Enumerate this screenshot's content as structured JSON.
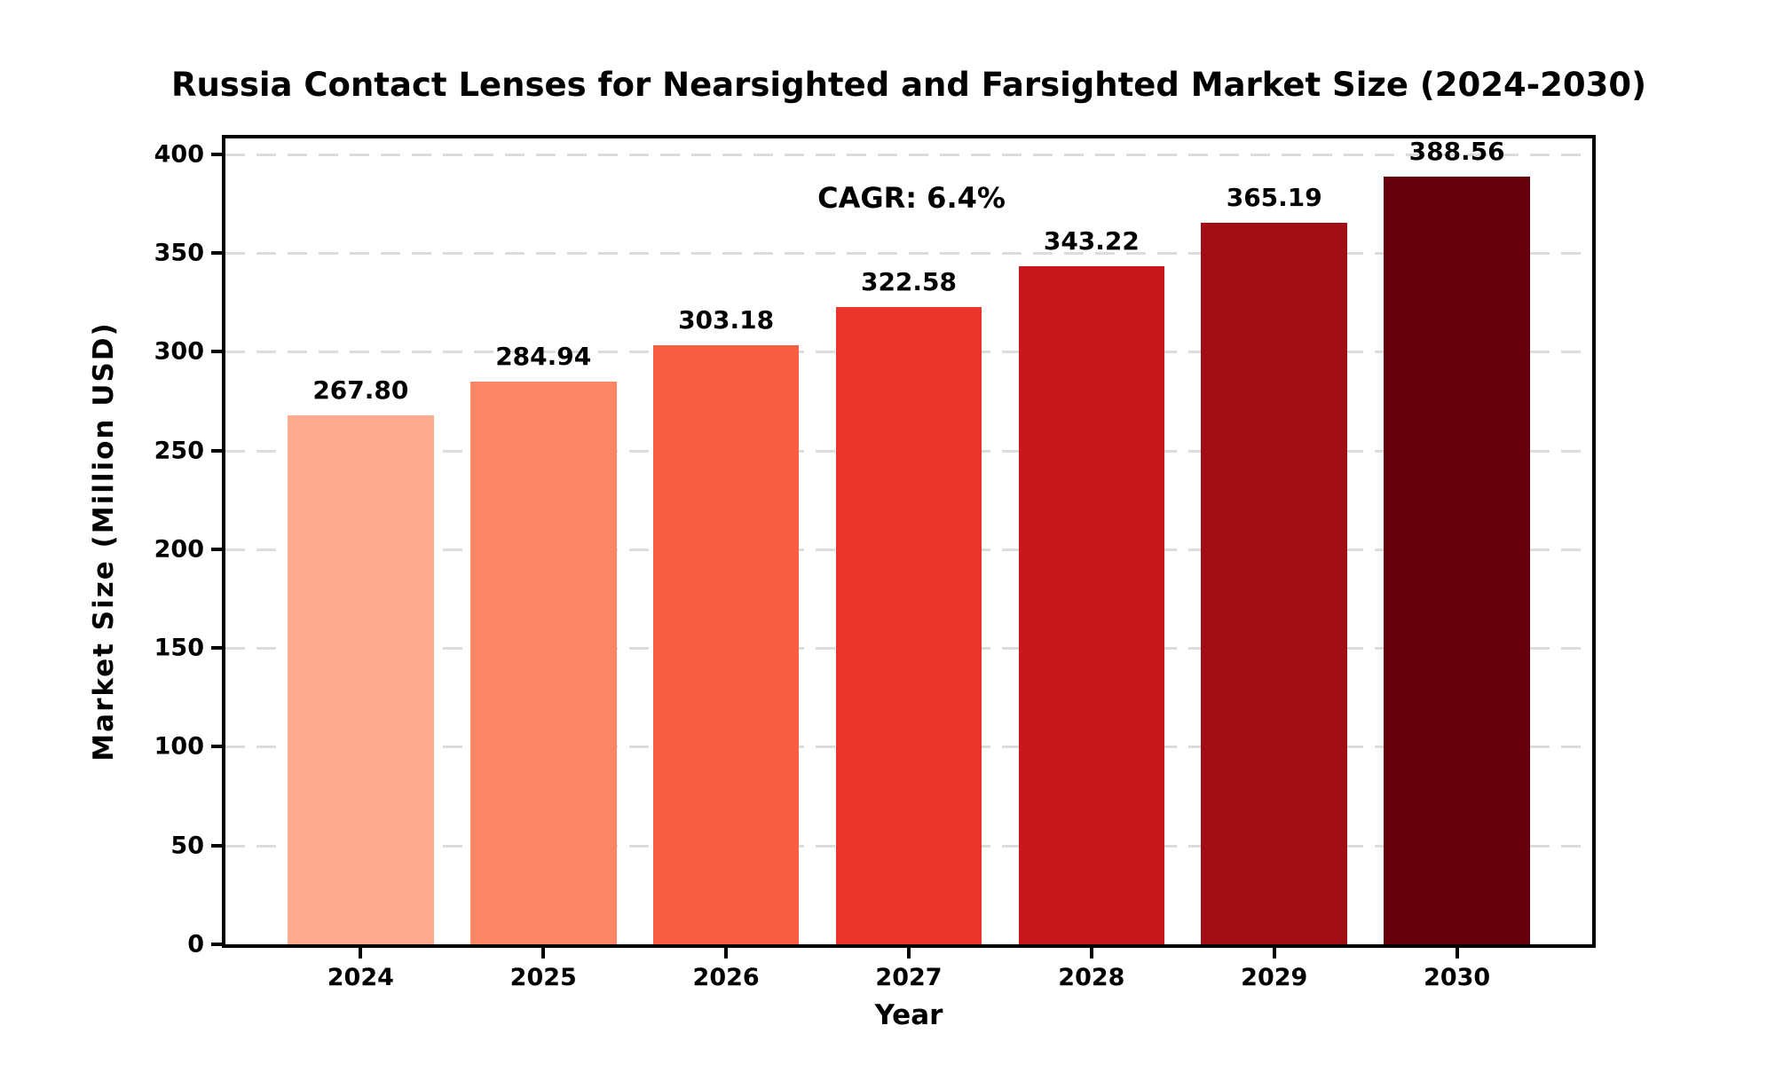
{
  "chart_data": {
    "type": "bar",
    "title": "Russia Contact Lenses for Nearsighted and Farsighted Market Size (2024-2030)",
    "xlabel": "Year",
    "ylabel": "Market Size (Million USD)",
    "annotation": "CAGR: 6.4%",
    "categories": [
      "2024",
      "2025",
      "2026",
      "2027",
      "2028",
      "2029",
      "2030"
    ],
    "values": [
      267.8,
      284.94,
      303.18,
      322.58,
      343.22,
      365.19,
      388.56
    ],
    "value_labels": [
      "267.80",
      "284.94",
      "303.18",
      "322.58",
      "343.22",
      "365.19",
      "388.56"
    ],
    "bar_colors": [
      "#FCAB8E",
      "#FB8565",
      "#F85D42",
      "#E83429",
      "#C6171C",
      "#A10E15",
      "#67000D"
    ],
    "ylim": [
      0,
      408
    ],
    "yticks": [
      0,
      50,
      100,
      150,
      200,
      250,
      300,
      350,
      400
    ],
    "ytick_labels": [
      "0",
      "50",
      "100",
      "150",
      "200",
      "250",
      "300",
      "350",
      "400"
    ],
    "grid": "horizontal-dashed",
    "grid_color": "#DCDCDC",
    "legend": "none",
    "text_color": "#000000",
    "background_color": "#FFFFFF"
  }
}
